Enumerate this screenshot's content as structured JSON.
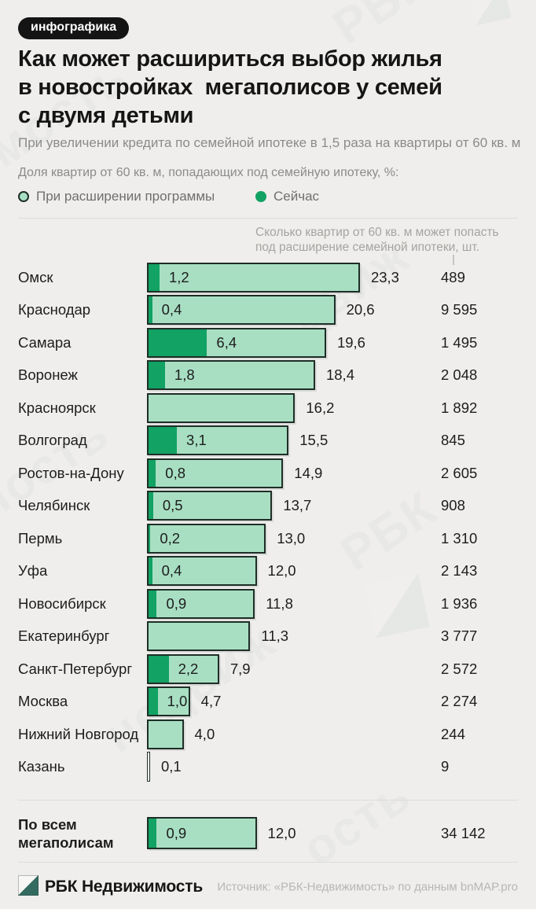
{
  "badge": "инфографика",
  "title_lines": [
    "Как может расшириться выбор жилья",
    "в новостройках  мегаполисов у семей",
    "с двумя детьми"
  ],
  "subtitle": "При увеличении кредита по семейной ипотеке в 1,5 раза на квартиры от 60 кв. м",
  "legend": {
    "label": "Доля квартир от 60 кв. м, попадающих под семейную ипотеку, %:",
    "items": [
      {
        "label": "При расширении программы",
        "color": "#a8dfc3"
      },
      {
        "label": "Сейчас",
        "color": "#12a263"
      }
    ]
  },
  "column_note_lines": [
    "Сколько квартир от 60 кв. м может попасть",
    "под расширение семейной ипотеки, шт."
  ],
  "chart_data": {
    "type": "bar",
    "orientation": "horizontal",
    "value_unit": "%",
    "series_names": [
      "При расширении программы",
      "Сейчас"
    ],
    "colors": {
      "expanded": "#a8dfc3",
      "now": "#12a263",
      "bar_border": "#1e2e27"
    },
    "x_max_percent": 23.3,
    "rows": [
      {
        "city": "Омск",
        "now": 1.2,
        "now_label": "1,2",
        "expanded": 23.3,
        "expanded_label": "23,3",
        "count": "489"
      },
      {
        "city": "Краснодар",
        "now": 0.4,
        "now_label": "0,4",
        "expanded": 20.6,
        "expanded_label": "20,6",
        "count": "9 595"
      },
      {
        "city": "Самара",
        "now": 6.4,
        "now_label": "6,4",
        "expanded": 19.6,
        "expanded_label": "19,6",
        "count": "1 495"
      },
      {
        "city": "Воронеж",
        "now": 1.8,
        "now_label": "1,8",
        "expanded": 18.4,
        "expanded_label": "18,4",
        "count": "2 048"
      },
      {
        "city": "Красноярск",
        "now": null,
        "now_label": null,
        "expanded": 16.2,
        "expanded_label": "16,2",
        "count": "1 892"
      },
      {
        "city": "Волгоград",
        "now": 3.1,
        "now_label": "3,1",
        "expanded": 15.5,
        "expanded_label": "15,5",
        "count": "845"
      },
      {
        "city": "Ростов-на-Дону",
        "now": 0.8,
        "now_label": "0,8",
        "expanded": 14.9,
        "expanded_label": "14,9",
        "count": "2 605"
      },
      {
        "city": "Челябинск",
        "now": 0.5,
        "now_label": "0,5",
        "expanded": 13.7,
        "expanded_label": "13,7",
        "count": "908"
      },
      {
        "city": "Пермь",
        "now": 0.2,
        "now_label": "0,2",
        "expanded": 13.0,
        "expanded_label": "13,0",
        "count": "1 310"
      },
      {
        "city": "Уфа",
        "now": 0.4,
        "now_label": "0,4",
        "expanded": 12.0,
        "expanded_label": "12,0",
        "count": "2 143"
      },
      {
        "city": "Новосибирск",
        "now": 0.9,
        "now_label": "0,9",
        "expanded": 11.8,
        "expanded_label": "11,8",
        "count": "1 936"
      },
      {
        "city": "Екатеринбург",
        "now": null,
        "now_label": null,
        "expanded": 11.3,
        "expanded_label": "11,3",
        "count": "3 777"
      },
      {
        "city": "Санкт-Петербург",
        "now": 2.2,
        "now_label": "2,2",
        "expanded": 7.9,
        "expanded_label": "7,9",
        "count": "2 572"
      },
      {
        "city": "Москва",
        "now": 1.0,
        "now_label": "1,0",
        "expanded": 4.7,
        "expanded_label": "4,7",
        "count": "2 274"
      },
      {
        "city": "Нижний Новгород",
        "now": null,
        "now_label": null,
        "expanded": 4.0,
        "expanded_label": "4,0",
        "count": "244"
      },
      {
        "city": "Казань",
        "now": null,
        "now_label": null,
        "expanded": 0.1,
        "expanded_label": "0,1",
        "count": "9"
      }
    ],
    "total": {
      "label_lines": [
        "По всем",
        "мегаполисам"
      ],
      "now": 0.9,
      "now_label": "0,9",
      "expanded": 12.0,
      "expanded_label": "12,0",
      "count": "34 142"
    }
  },
  "footer": {
    "brand": "РБК Недвижимость",
    "source": "Источник: «РБК-Недвижимость» по данным bnMAP.pro"
  },
  "watermark_text": "РБК Недвижимость"
}
